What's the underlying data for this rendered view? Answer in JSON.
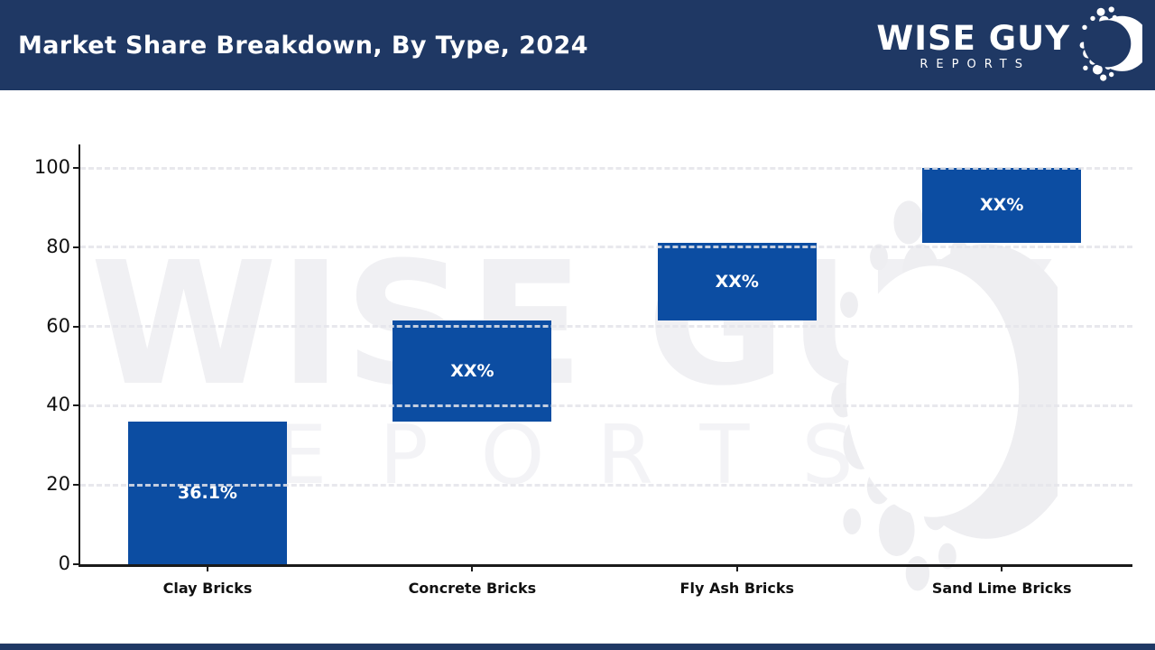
{
  "header": {
    "title": "Market Share Breakdown, By Type, 2024",
    "logo": {
      "wordmark": "WISE GUY",
      "subtext": "REPORTS"
    }
  },
  "watermark": {
    "wordmark": "WISE GUY",
    "subtext": "REPORTS"
  },
  "chart_data": {
    "type": "bar",
    "subtype": "waterfall",
    "title": "Market Share Breakdown, By Type, 2024",
    "categories": [
      "Clay Bricks",
      "Concrete Bricks",
      "Fly Ash Bricks",
      "Sand Lime Bricks"
    ],
    "segments": [
      {
        "category": "Clay Bricks",
        "start": 0,
        "end": 36.1,
        "label": "36.1%"
      },
      {
        "category": "Concrete Bricks",
        "start": 36.1,
        "end": 61.4,
        "label": "XX%"
      },
      {
        "category": "Fly Ash Bricks",
        "start": 61.4,
        "end": 81.2,
        "label": "XX%"
      },
      {
        "category": "Sand Lime Bricks",
        "start": 81.2,
        "end": 100,
        "label": "XX%"
      }
    ],
    "yticks": [
      0,
      20,
      40,
      60,
      80,
      100
    ],
    "ylim": [
      0,
      105
    ],
    "xlabel": "",
    "ylabel": "",
    "grid": "horizontal-dashed",
    "legend": "none",
    "bar_color": "#0c4da2",
    "bar_label_color": "#ffffff"
  },
  "colors": {
    "header_bg": "#1f3864",
    "footer_bg": "#1f3864",
    "bar": "#0c4da2",
    "axis": "#1a1a1a",
    "grid": "#e4e4ea",
    "watermark": "#f0f0f3"
  }
}
